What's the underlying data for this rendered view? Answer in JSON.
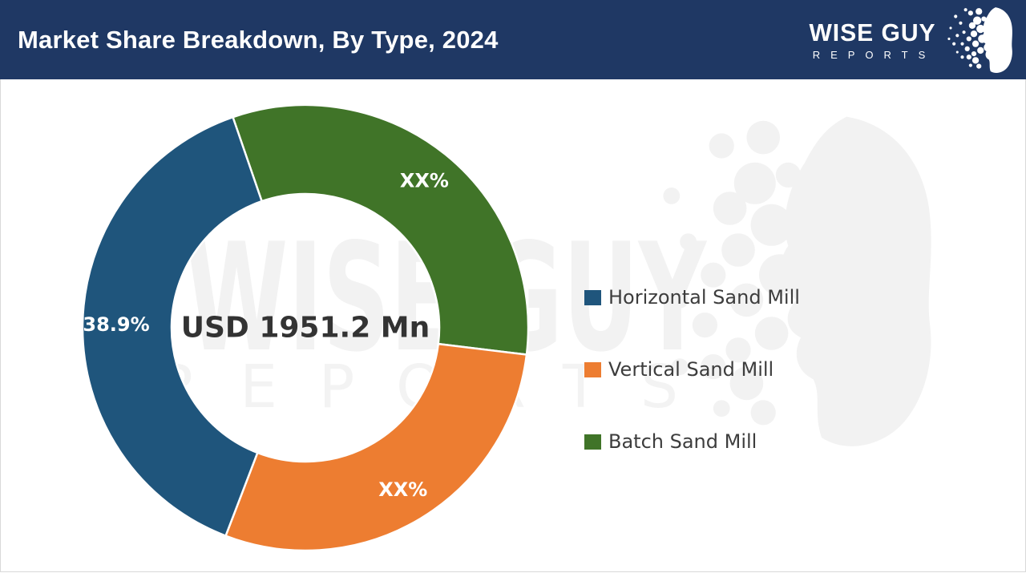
{
  "header": {
    "title": "Market Share Breakdown, By Type, 2024",
    "logo": {
      "name": "WISE GUY",
      "tagline": "REPORTS"
    },
    "colors": {
      "background": "#1F3864",
      "text": "#FFFFFF"
    }
  },
  "watermark": {
    "line1": "WISE GUY",
    "line2": "REPORTS"
  },
  "chart_data": {
    "type": "pie",
    "donut": true,
    "title": "Market Share Breakdown, By Type, 2024",
    "center_label": "USD 1951.2 Mn",
    "legend_position": "right",
    "start_angle_deg": -19,
    "series": [
      {
        "name": "Horizontal Sand Mill",
        "value_pct": 38.9,
        "display_label": "38.9%",
        "color": "#1F557C"
      },
      {
        "name": "Vertical Sand Mill",
        "value_pct": 28.9,
        "display_label": "XX%",
        "color": "#ED7D31"
      },
      {
        "name": "Batch Sand Mill",
        "value_pct": 32.2,
        "display_label": "XX%",
        "color": "#407428"
      }
    ],
    "draw_order_clockwise_from_top": [
      2,
      1,
      0
    ]
  }
}
